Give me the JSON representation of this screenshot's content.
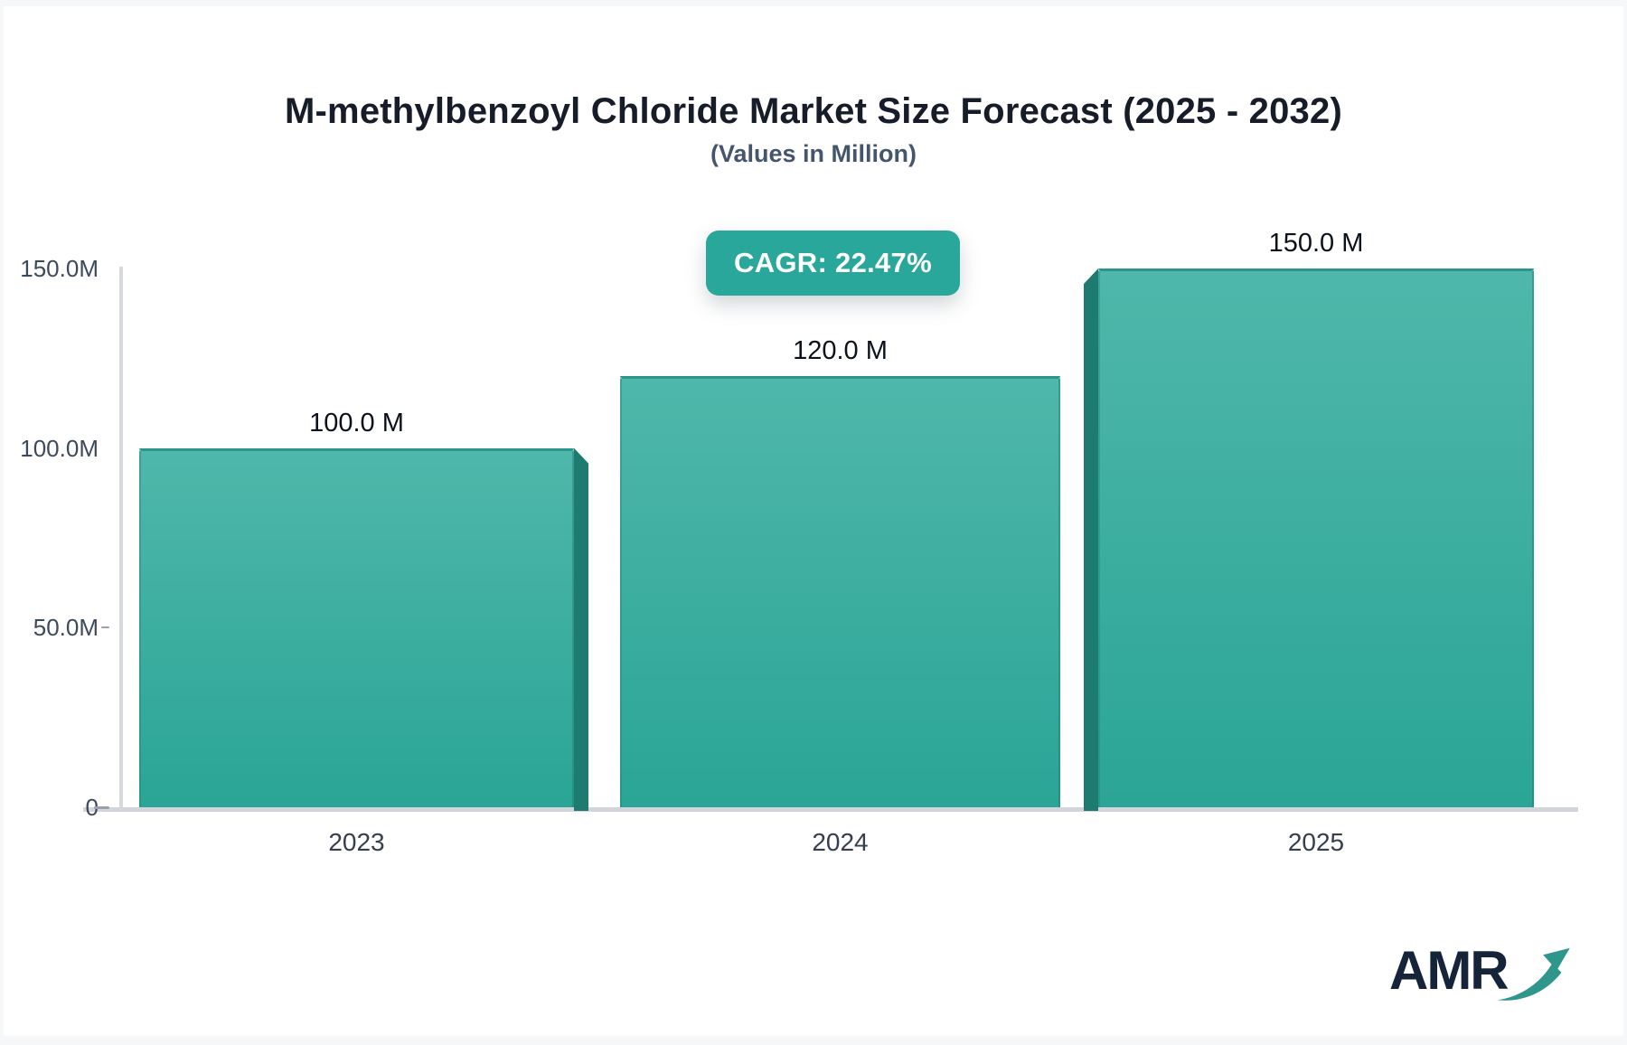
{
  "header": {
    "title": "M-methylbenzoyl Chloride Market Size Forecast (2025 - 2032)",
    "subtitle": "(Values in Million)"
  },
  "cagr": {
    "label": "CAGR: 22.47%"
  },
  "logo": {
    "text": "AMR"
  },
  "chart_data": {
    "type": "bar",
    "title": "M-methylbenzoyl Chloride Market Size Forecast (2025 - 2032)",
    "subtitle": "(Values in Million)",
    "xlabel": "",
    "ylabel": "",
    "categories": [
      "2023",
      "2024",
      "2025"
    ],
    "values": [
      100,
      120,
      150
    ],
    "value_labels": [
      "100.0 M",
      "120.0 M",
      "150.0 M"
    ],
    "cagr_annotation": "CAGR: 22.47%",
    "ylim": [
      0,
      150
    ],
    "y_ticks": [
      {
        "label": "150.0M",
        "value": 150,
        "tick_mark": false
      },
      {
        "label": "100.0M",
        "value": 100,
        "tick_mark": false
      },
      {
        "label": "50.0M",
        "value": 50,
        "tick_mark": true
      },
      {
        "label": "0",
        "value": 0,
        "tick_mark": true
      }
    ],
    "grid": "off",
    "legend_position": "none",
    "colors": {
      "bar_gradient_top": "#4fb7ab",
      "bar_gradient_bottom": "#2aa596",
      "bar_side_3d": "#1e7b70",
      "accent_badge": "#2aa79b",
      "axis_line": "#d4d7dc",
      "logo_arrow": "#2e968a"
    }
  }
}
